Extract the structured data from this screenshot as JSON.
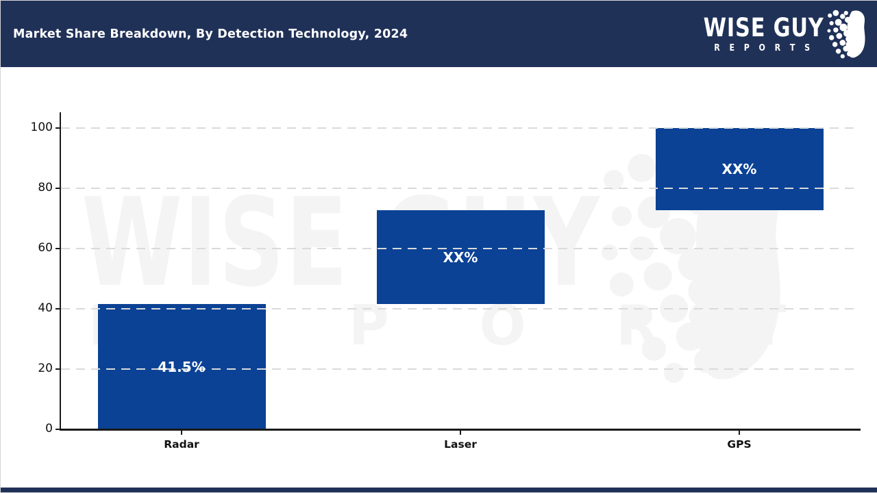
{
  "header": {
    "title": "Market Share Breakdown, By Detection Technology, 2024",
    "bg_color": "#203158",
    "logo": {
      "wordmark": "WISE GUY",
      "subtitle": "R E P O R T S",
      "face_icon": "dotted-face-profile"
    }
  },
  "watermark": {
    "wordmark": "WISE GUY",
    "subtitle": "R E P O R T S",
    "face_icon": "dotted-face-profile"
  },
  "chart_data": {
    "type": "bar",
    "variant": "waterfall-floating-bars",
    "title": "Market Share Breakdown, By Detection Technology, 2024",
    "categories": [
      "Radar",
      "Laser",
      "GPS"
    ],
    "segments": [
      {
        "category": "Radar",
        "start": 0,
        "end": 41.5,
        "label": "41.5%"
      },
      {
        "category": "Laser",
        "start": 41.5,
        "end": 72.7,
        "label": "XX%"
      },
      {
        "category": "GPS",
        "start": 72.7,
        "end": 100,
        "label": "XX%"
      }
    ],
    "bar_color": "#0b4295",
    "label_color": "#ffffff",
    "xlabel": "",
    "ylabel": "",
    "ylim": [
      0,
      100
    ],
    "yticks": [
      0,
      20,
      40,
      60,
      80,
      100
    ],
    "grid": "horizontal-dashed",
    "legend": "none"
  },
  "footer": {
    "bar_color": "#203158"
  }
}
